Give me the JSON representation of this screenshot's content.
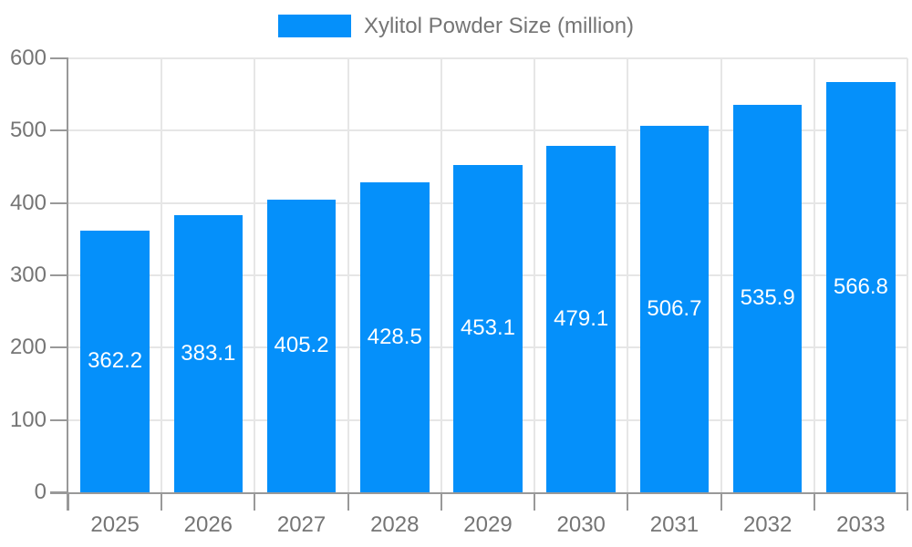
{
  "chart_data": {
    "type": "bar",
    "title": "",
    "series_name": "Xylitol Powder Size (million)",
    "categories": [
      "2025",
      "2026",
      "2027",
      "2028",
      "2029",
      "2030",
      "2031",
      "2032",
      "2033"
    ],
    "values": [
      362.2,
      383.1,
      405.2,
      428.5,
      453.1,
      479.1,
      506.7,
      535.9,
      566.8
    ],
    "xlabel": "",
    "ylabel": "",
    "ylim": [
      0,
      600
    ],
    "y_ticks": [
      0,
      100,
      200,
      300,
      400,
      500,
      600
    ],
    "grid": true,
    "legend_position": "top",
    "bar_labels_inside": true,
    "colors": {
      "bar": "#0590fa",
      "bar_label": "#ffffff",
      "axis_label": "#757575",
      "legend_text": "#757575",
      "axis_line": "#999999",
      "grid_line": "#e6e6e6",
      "background": "#ffffff"
    }
  }
}
